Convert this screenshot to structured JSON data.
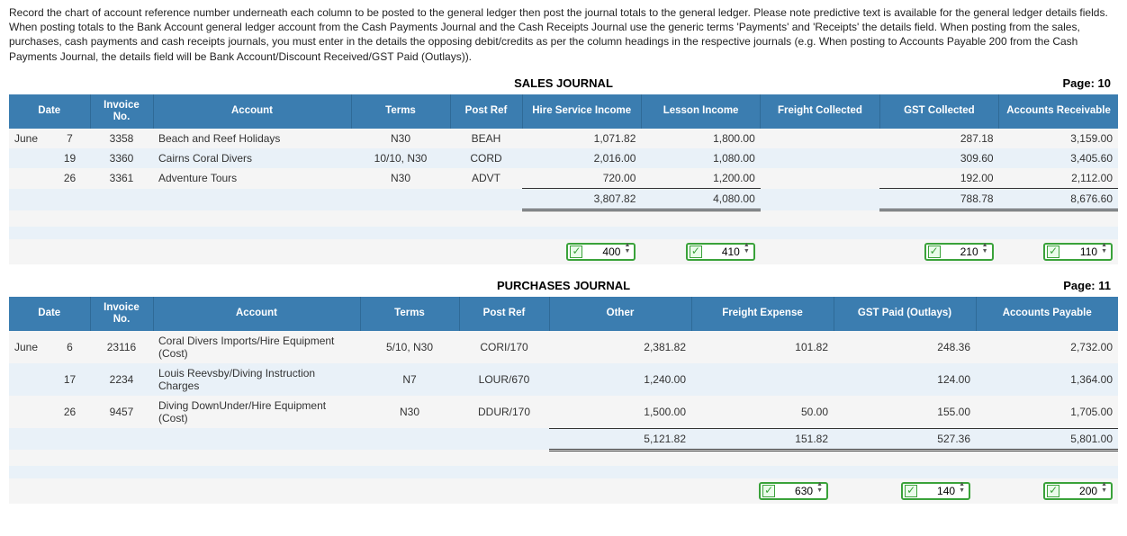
{
  "instructions": "Record the chart of account reference number underneath each column to be posted to the general ledger then post the journal totals to the general ledger. Please note predictive text is available for the general ledger details fields. When posting totals to the Bank Account general ledger account from the Cash Payments Journal and the Cash Receipts Journal use the generic terms 'Payments' and 'Receipts' the details field. When posting from the sales, purchases, cash payments and cash receipts journals, you must enter in the details the opposing debit/credits as per the column headings in the respective journals (e.g. When posting to Accounts Payable 200 from the Cash Payments Journal, the details field will be Bank Account/Discount Received/GST Paid (Outlays)).",
  "sales": {
    "title": "SALES JOURNAL",
    "page": "Page: 10",
    "month": "June",
    "headers": {
      "date": "Date",
      "inv": "Invoice No.",
      "acct": "Account",
      "terms": "Terms",
      "ref": "Post Ref",
      "c1": "Hire Service Income",
      "c2": "Lesson Income",
      "c3": "Freight Collected",
      "c4": "GST Collected",
      "c5": "Accounts Receivable"
    },
    "rows": [
      {
        "date": "7",
        "inv": "3358",
        "acct": "Beach and Reef Holidays",
        "terms": "N30",
        "ref": "BEAH",
        "v1": "1,071.82",
        "v2": "1,800.00",
        "v3": "",
        "v4": "287.18",
        "v5": "3,159.00"
      },
      {
        "date": "19",
        "inv": "3360",
        "acct": "Cairns Coral Divers",
        "terms": "10/10, N30",
        "ref": "CORD",
        "v1": "2,016.00",
        "v2": "1,080.00",
        "v3": "",
        "v4": "309.60",
        "v5": "3,405.60"
      },
      {
        "date": "26",
        "inv": "3361",
        "acct": "Adventure Tours",
        "terms": "N30",
        "ref": "ADVT",
        "v1": "720.00",
        "v2": "1,200.00",
        "v3": "",
        "v4": "192.00",
        "v5": "2,112.00"
      }
    ],
    "totals": {
      "v1": "3,807.82",
      "v2": "4,080.00",
      "v3": "",
      "v4": "788.78",
      "v5": "8,676.60"
    },
    "refs": {
      "r1": "400",
      "r2": "410",
      "r3": "",
      "r4": "210",
      "r5": "110"
    }
  },
  "purchases": {
    "title": "PURCHASES JOURNAL",
    "page": "Page: 11",
    "month": "June",
    "headers": {
      "date": "Date",
      "inv": "Invoice No.",
      "acct": "Account",
      "terms": "Terms",
      "ref": "Post Ref",
      "c1": "Other",
      "c2": "Freight Expense",
      "c3": "GST Paid (Outlays)",
      "c4": "Accounts Payable"
    },
    "rows": [
      {
        "date": "6",
        "inv": "23116",
        "acct": "Coral Divers Imports/Hire Equipment (Cost)",
        "terms": "5/10, N30",
        "ref": "CORI/170",
        "v1": "2,381.82",
        "v2": "101.82",
        "v3": "248.36",
        "v4": "2,732.00"
      },
      {
        "date": "17",
        "inv": "2234",
        "acct": "Louis Reevsby/Diving Instruction Charges",
        "terms": "N7",
        "ref": "LOUR/670",
        "v1": "1,240.00",
        "v2": "",
        "v3": "124.00",
        "v4": "1,364.00"
      },
      {
        "date": "26",
        "inv": "9457",
        "acct": "Diving DownUnder/Hire Equipment (Cost)",
        "terms": "N30",
        "ref": "DDUR/170",
        "v1": "1,500.00",
        "v2": "50.00",
        "v3": "155.00",
        "v4": "1,705.00"
      }
    ],
    "totals": {
      "v1": "5,121.82",
      "v2": "151.82",
      "v3": "527.36",
      "v4": "5,801.00"
    },
    "refs": {
      "r1": "",
      "r2": "630",
      "r3": "140",
      "r4": "200"
    }
  },
  "colwidths": {
    "sales": {
      "month": "45",
      "date": "45",
      "inv": "70",
      "acct": "220",
      "terms": "110",
      "ref": "80",
      "num": "120"
    },
    "purch": {
      "month": "45",
      "date": "45",
      "inv": "70",
      "acct": "230",
      "terms": "110",
      "ref": "100",
      "num": "120"
    }
  }
}
